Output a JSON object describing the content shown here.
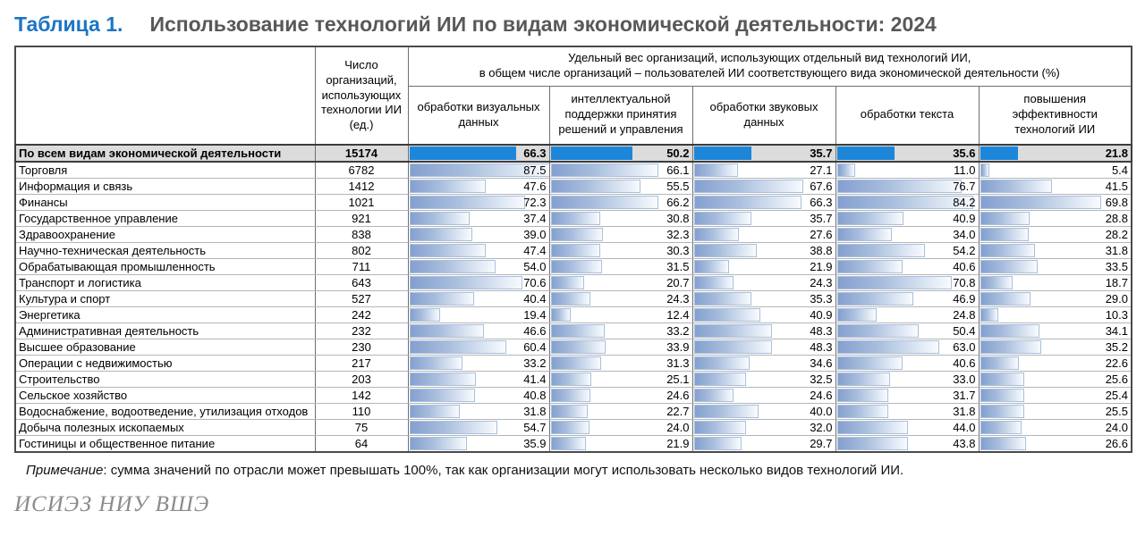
{
  "title": {
    "label": "Таблица 1.",
    "text": "Использование технологий ИИ по видам экономической деятельности: 2024"
  },
  "header": {
    "org_count": "Число организаций, использующих технологии ИИ (ед.)",
    "share_line1": "Удельный вес организаций, использующих отдельный вид технологий ИИ,",
    "share_line2": "в общем числе организаций – пользователей ИИ соответствующего вида экономической деятельности (%)"
  },
  "note": {
    "label": "Примечание",
    "text": ": сумма значений по отрасли может превышать 100%, так как организации могут использовать несколько видов технологий ИИ."
  },
  "footer": {
    "text": "ИСИЭЗ НИУ ВШЭ"
  },
  "colors": {
    "title_blue": "#1b75c4",
    "title_gray": "#57585a",
    "solid_bar_blue": "#1e86d8",
    "gradient_bar_blue": "#84a0cf",
    "total_row_bg": "#dcdcdc"
  },
  "chart_data": {
    "type": "table",
    "title": "Использование технологий ИИ по видам экономической деятельности: 2024",
    "bar_scale_max": 87.5,
    "count_column": "Число организаций, использующих технологии ИИ (ед.)",
    "columns": [
      "обработки визуальных данных",
      "интеллектуальной поддержки принятия решений и управления",
      "обработки звуковых данных",
      "обработки текста",
      "повышения эффективности технологий ИИ"
    ],
    "total_row": {
      "label": "По всем видам экономической деятельности",
      "count": "15174",
      "values": [
        "66.3",
        "50.2",
        "35.7",
        "35.6",
        "21.8"
      ]
    },
    "rows": [
      {
        "label": "Торговля",
        "count": "6782",
        "values": [
          "87.5",
          "66.1",
          "27.1",
          "11.0",
          "5.4"
        ]
      },
      {
        "label": "Информация и связь",
        "count": "1412",
        "values": [
          "47.6",
          "55.5",
          "67.6",
          "76.7",
          "41.5"
        ]
      },
      {
        "label": "Финансы",
        "count": "1021",
        "values": [
          "72.3",
          "66.2",
          "66.3",
          "84.2",
          "69.8"
        ]
      },
      {
        "label": "Государственное управление",
        "count": "921",
        "values": [
          "37.4",
          "30.8",
          "35.7",
          "40.9",
          "28.8"
        ]
      },
      {
        "label": "Здравоохранение",
        "count": "838",
        "values": [
          "39.0",
          "32.3",
          "27.6",
          "34.0",
          "28.2"
        ]
      },
      {
        "label": "Научно-техническая деятельность",
        "count": "802",
        "values": [
          "47.4",
          "30.3",
          "38.8",
          "54.2",
          "31.8"
        ]
      },
      {
        "label": "Обрабатывающая промышленность",
        "count": "711",
        "values": [
          "54.0",
          "31.5",
          "21.9",
          "40.6",
          "33.5"
        ]
      },
      {
        "label": "Транспорт и логистика",
        "count": "643",
        "values": [
          "70.6",
          "20.7",
          "24.3",
          "70.8",
          "18.7"
        ]
      },
      {
        "label": "Культура и спорт",
        "count": "527",
        "values": [
          "40.4",
          "24.3",
          "35.3",
          "46.9",
          "29.0"
        ]
      },
      {
        "label": "Энергетика",
        "count": "242",
        "values": [
          "19.4",
          "12.4",
          "40.9",
          "24.8",
          "10.3"
        ]
      },
      {
        "label": "Административная деятельность",
        "count": "232",
        "values": [
          "46.6",
          "33.2",
          "48.3",
          "50.4",
          "34.1"
        ]
      },
      {
        "label": "Высшее образование",
        "count": "230",
        "values": [
          "60.4",
          "33.9",
          "48.3",
          "63.0",
          "35.2"
        ]
      },
      {
        "label": "Операции с недвижимостью",
        "count": "217",
        "values": [
          "33.2",
          "31.3",
          "34.6",
          "40.6",
          "22.6"
        ]
      },
      {
        "label": "Строительство",
        "count": "203",
        "values": [
          "41.4",
          "25.1",
          "32.5",
          "33.0",
          "25.6"
        ]
      },
      {
        "label": "Сельское хозяйство",
        "count": "142",
        "values": [
          "40.8",
          "24.6",
          "24.6",
          "31.7",
          "25.4"
        ]
      },
      {
        "label": "Водоснабжение, водоотведение, утилизация отходов",
        "count": "110",
        "values": [
          "31.8",
          "22.7",
          "40.0",
          "31.8",
          "25.5"
        ]
      },
      {
        "label": "Добыча полезных ископаемых",
        "count": "75",
        "values": [
          "54.7",
          "24.0",
          "32.0",
          "44.0",
          "24.0"
        ]
      },
      {
        "label": "Гостиницы и общественное питание",
        "count": "64",
        "values": [
          "35.9",
          "21.9",
          "29.7",
          "43.8",
          "26.6"
        ]
      }
    ]
  }
}
